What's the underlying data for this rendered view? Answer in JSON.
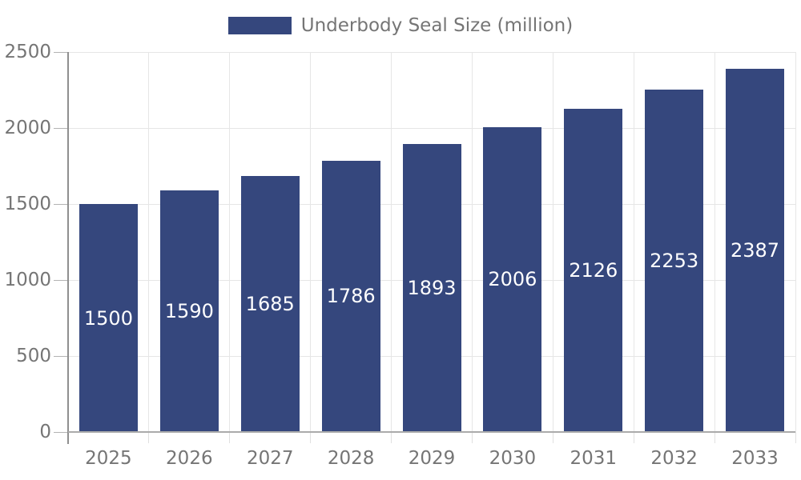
{
  "chart_data": {
    "type": "bar",
    "title": "",
    "legend": [
      "Underbody Seal Size (million)"
    ],
    "legend_position": "top-center",
    "categories": [
      "2025",
      "2026",
      "2027",
      "2028",
      "2029",
      "2030",
      "2031",
      "2032",
      "2033"
    ],
    "series": [
      {
        "name": "Underbody Seal Size (million)",
        "values": [
          1500,
          1590,
          1685,
          1786,
          1893,
          2006,
          2126,
          2253,
          2387
        ]
      }
    ],
    "value_labels": "inside-center",
    "xlabel": "",
    "ylabel": "",
    "ylim": [
      0,
      2500
    ],
    "y_ticks": [
      0,
      500,
      1000,
      1500,
      2000,
      2500
    ],
    "grid": true,
    "colors": {
      "bar": "#35477d",
      "value_label": "#ffffff",
      "legend_text": "#757575",
      "axis_label": "#757575",
      "grid_line": "#e6e6e6",
      "x_axis_line": "#ababab",
      "y_axis_line": "#8f8f8f",
      "y_tick": "#b3b3b3",
      "x_tick": "#e0e0e0",
      "background": "#ffffff"
    }
  }
}
